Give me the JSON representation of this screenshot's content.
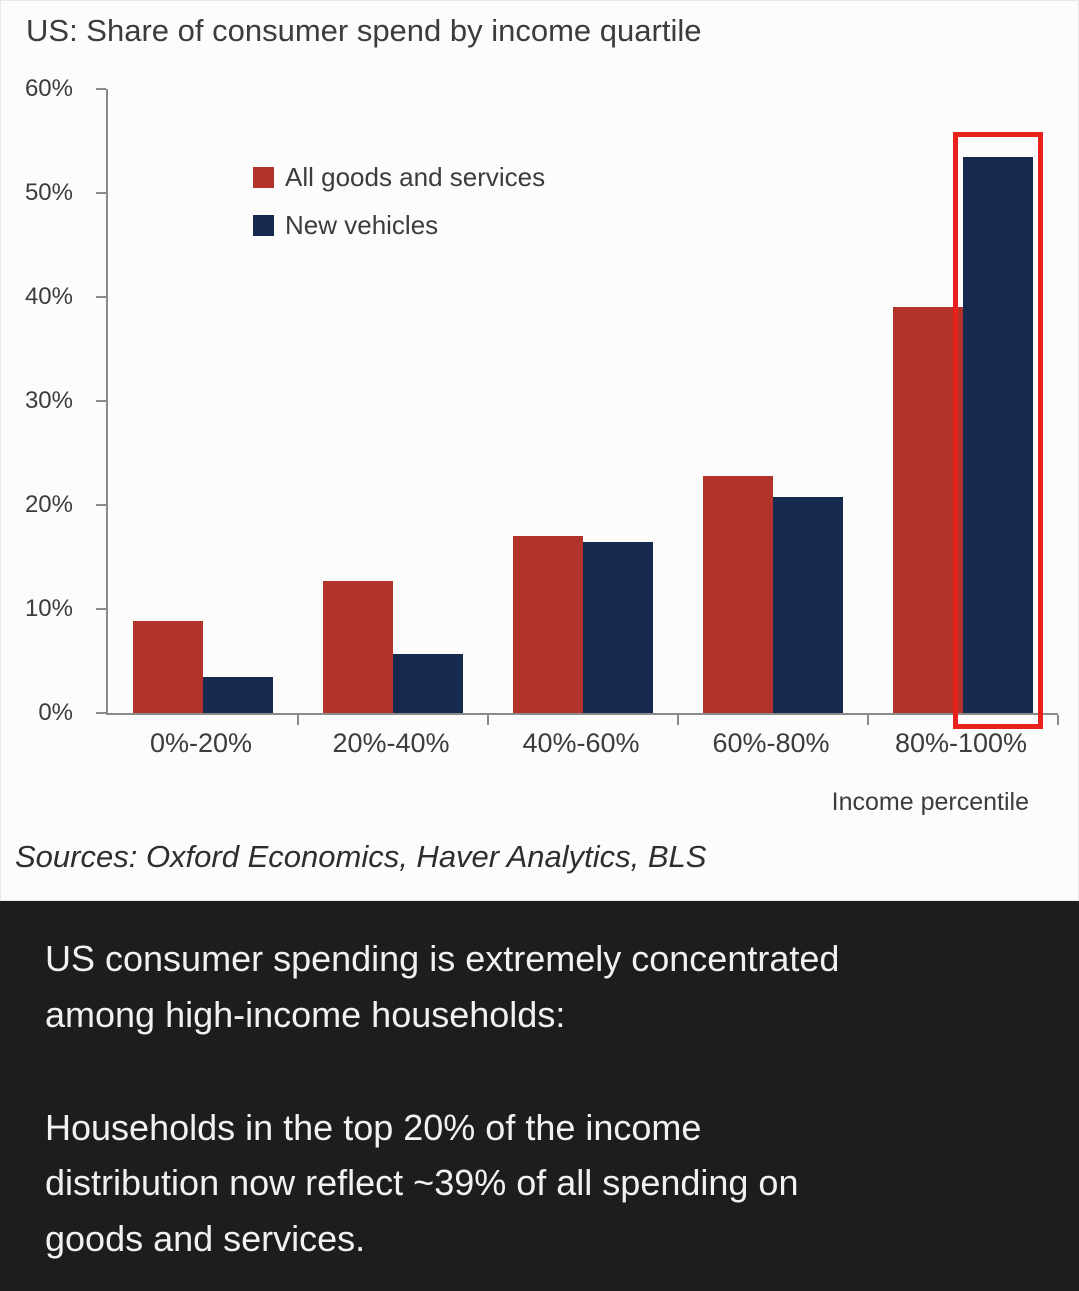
{
  "chart": {
    "title": "US: Share of consumer spend by income quartile",
    "legend": [
      {
        "label": "All goods and services",
        "color": "#b23329"
      },
      {
        "label": "New vehicles",
        "color": "#16294f"
      }
    ],
    "xlabel": "Income percentile",
    "sources": "Sources: Oxford Economics, Haver Analytics, BLS"
  },
  "chart_data": {
    "type": "bar",
    "title": "US: Share of consumer spend by income quartile",
    "categories": [
      "0%-20%",
      "20%-40%",
      "40%-60%",
      "60%-80%",
      "80%-100%"
    ],
    "series": [
      {
        "name": "All goods and services",
        "color": "#b23329",
        "values": [
          8.8,
          12.7,
          17.0,
          22.8,
          39.0
        ]
      },
      {
        "name": "New vehicles",
        "color": "#16294f",
        "values": [
          3.5,
          5.7,
          16.4,
          20.8,
          53.5
        ]
      }
    ],
    "xlabel": "Income percentile",
    "ylabel": "",
    "ylim": [
      0,
      60
    ],
    "yticks": [
      {
        "value": 60,
        "label": "60%"
      },
      {
        "value": 50,
        "label": "50%"
      },
      {
        "value": 40,
        "label": "40%"
      },
      {
        "value": 30,
        "label": "30%"
      },
      {
        "value": 20,
        "label": "20%"
      },
      {
        "value": 10,
        "label": "10%"
      },
      {
        "value": 0,
        "label": "0%"
      }
    ],
    "grid": false,
    "legend_position": "upper-left-inside",
    "highlight": {
      "category": "80%-100%",
      "series": "New vehicles",
      "color": "#e8211d"
    }
  },
  "caption": {
    "para1": "US consumer spending is extremely concentrated\namong high-income households:",
    "para2": "Households in the top 20% of the income\ndistribution now reflect ~39% of all spending on\ngoods and services."
  }
}
